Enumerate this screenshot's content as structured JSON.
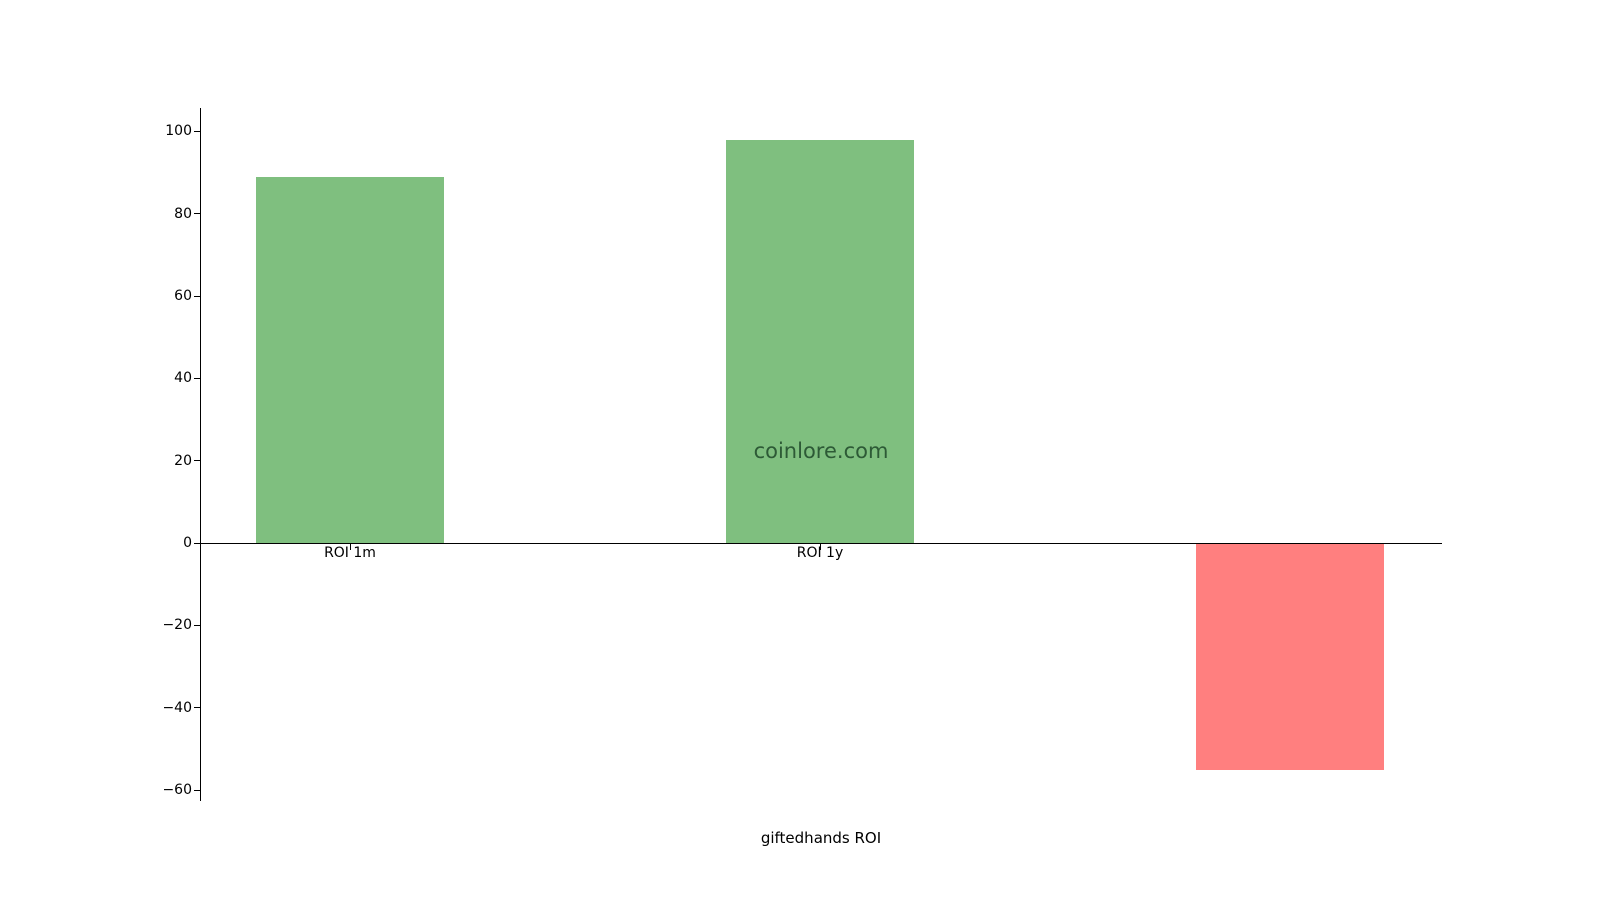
{
  "chart_data": {
    "type": "bar",
    "categories": [
      "ROI 1m",
      "ROI 1y",
      ""
    ],
    "values": [
      89,
      98,
      -55
    ],
    "bar_colors": [
      "#7fbf7f",
      "#7fbf7f",
      "#ff7f7f"
    ],
    "title": "",
    "xlabel": "giftedhands ROI",
    "ylabel": "",
    "ylim": [
      -62.65,
      105.65
    ],
    "yticks": [
      100,
      80,
      60,
      40,
      20,
      0,
      -20,
      -40,
      -60
    ],
    "ytick_labels": [
      "100",
      "80",
      "60",
      "40",
      "20",
      "0",
      "−20",
      "−40",
      "−60"
    ],
    "grid": false,
    "legend_position": "none"
  },
  "watermark": {
    "text": "coinlore.com"
  },
  "colors": {
    "positive_bar": "#7fbf7f",
    "negative_bar": "#ff7f7f",
    "axis": "#000000",
    "watermark": "#2d5a36",
    "background": "#ffffff"
  }
}
